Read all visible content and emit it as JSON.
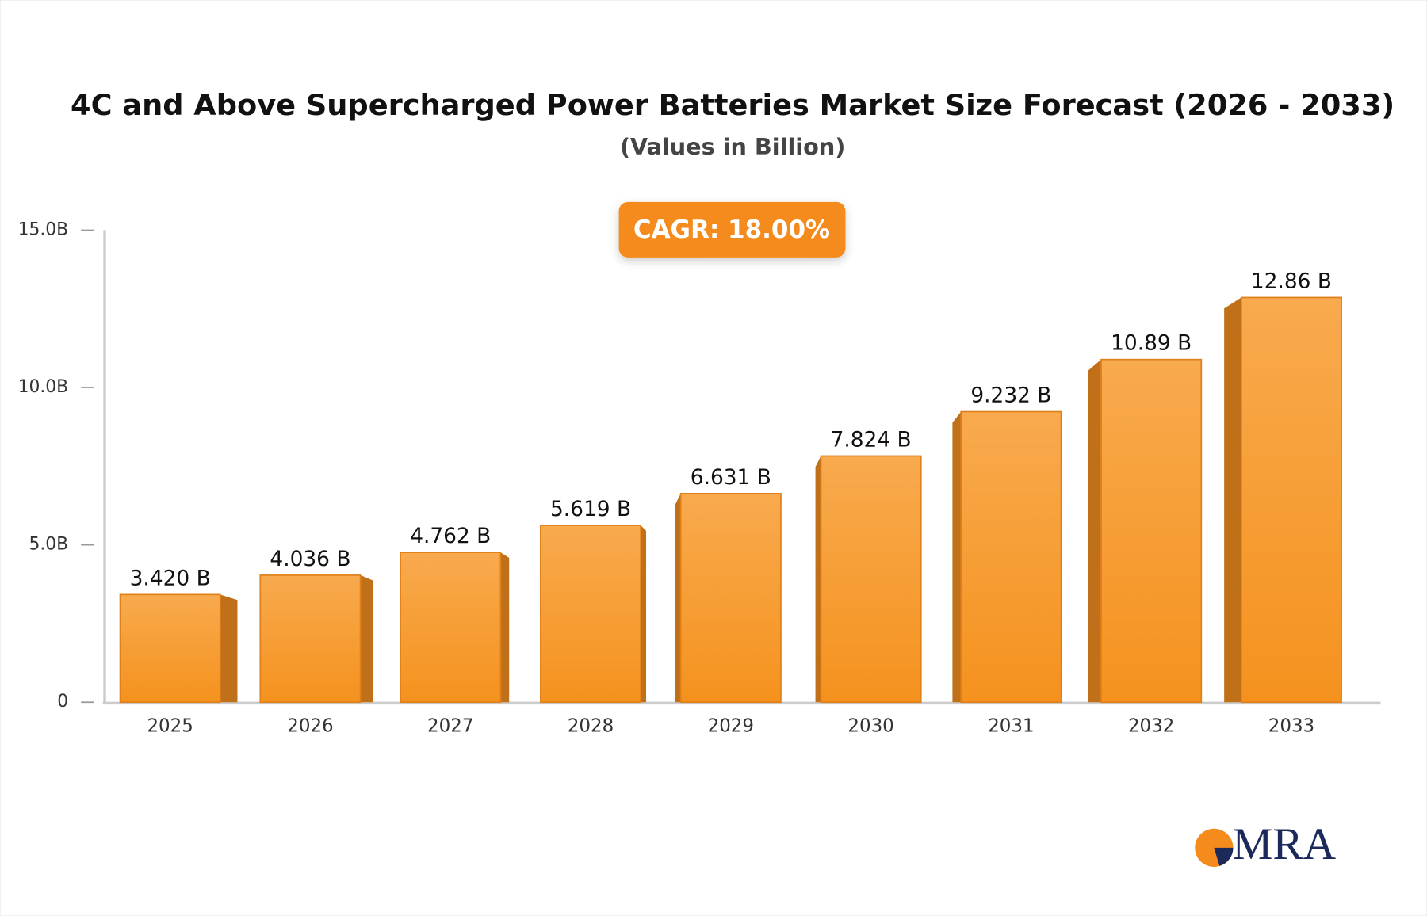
{
  "chart_data": {
    "type": "bar",
    "title": "4C and Above Supercharged Power Batteries Market Size Forecast (2026 - 2033)",
    "subtitle": "(Values in Billion)",
    "annotation": "CAGR: 18.00%",
    "categories": [
      "2025",
      "2026",
      "2027",
      "2028",
      "2029",
      "2030",
      "2031",
      "2032",
      "2033"
    ],
    "values": [
      3.42,
      4.036,
      4.762,
      5.619,
      6.631,
      7.824,
      9.232,
      10.89,
      12.86
    ],
    "value_labels": [
      "3.420 B",
      "4.036 B",
      "4.762 B",
      "5.619 B",
      "6.631 B",
      "7.824 B",
      "9.232 B",
      "10.89 B",
      "12.86 B"
    ],
    "color": "#f5961f",
    "ylim": [
      0,
      15
    ],
    "yticks": [
      0,
      {
        "value": 5,
        "label": "5.0B"
      },
      {
        "value": 10,
        "label": "10.0B"
      },
      {
        "value": 15,
        "label": "15.0B"
      }
    ],
    "grid": false
  },
  "logo": "MRA"
}
